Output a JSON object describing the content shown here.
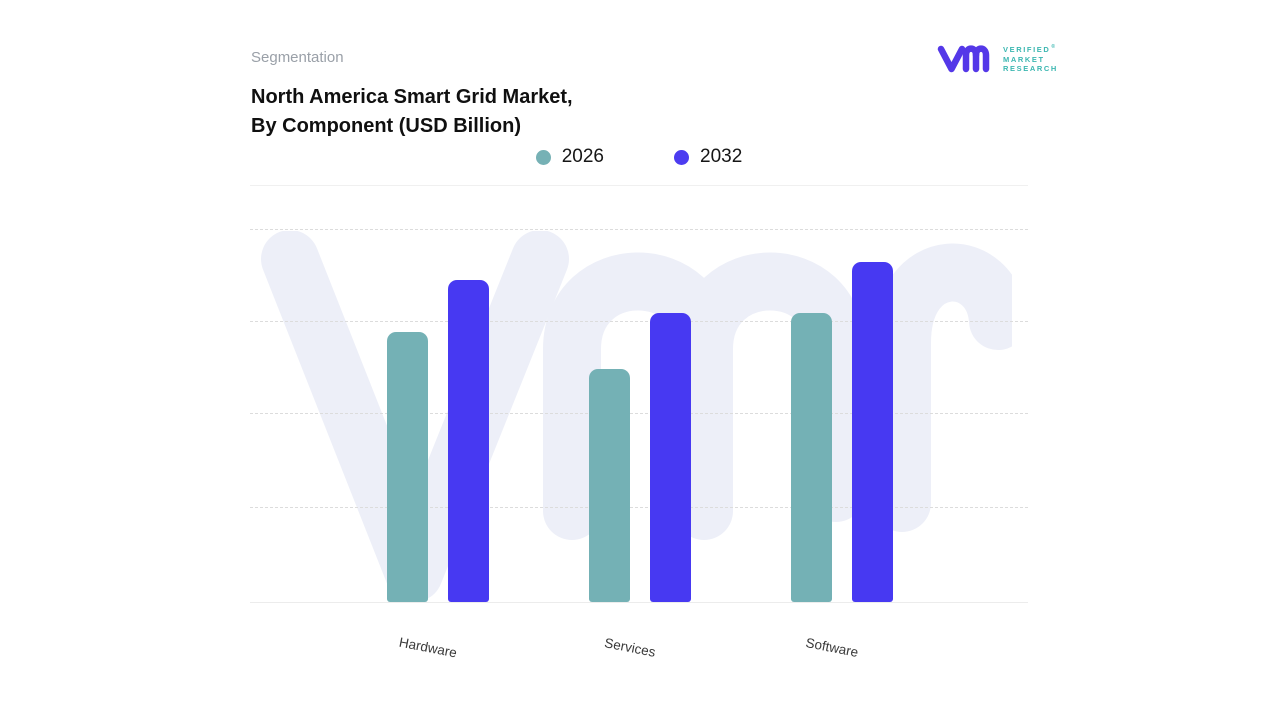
{
  "page": {
    "eyebrow": "Segmentation"
  },
  "header": {
    "title_line1": "North America Smart Grid Market,",
    "title_line2": "By Component (USD Billion)"
  },
  "logo": {
    "mark": "vmr-monogram",
    "word1": "VERIFIED",
    "registered": "®",
    "word2": "MARKET",
    "word3": "RESEARCH",
    "mark_color": "#5438e8",
    "text_color": "#3cb7b1"
  },
  "legend": {
    "items": [
      {
        "label": "2026",
        "color": "#76b1b5"
      },
      {
        "label": "2032",
        "color": "#4c3cf0"
      }
    ]
  },
  "chart_data": {
    "type": "bar",
    "title": "North America Smart Grid Market, By Component (USD Billion)",
    "categories": [
      "Hardware",
      "Services",
      "Software"
    ],
    "series": [
      {
        "name": "2026",
        "color": "#74b1b5",
        "values": [
          2.9,
          2.5,
          3.1
        ]
      },
      {
        "name": "2032",
        "color": "#4739f2",
        "values": [
          3.45,
          3.1,
          3.65
        ]
      }
    ],
    "xlabel": "",
    "ylabel": "",
    "ylim": [
      0,
      4
    ],
    "y_tick_labels_visible": false,
    "value_units": "relative gridline units (y axis unlabeled in source)",
    "grid": "4 horizontal dashed gridlines, solid baseline",
    "legend_position": "top-center",
    "bar_style": "rounded-top vertical bars, paired per category"
  },
  "watermark": {
    "name": "vmr-monogram-watermark",
    "color": "#edeff8"
  }
}
